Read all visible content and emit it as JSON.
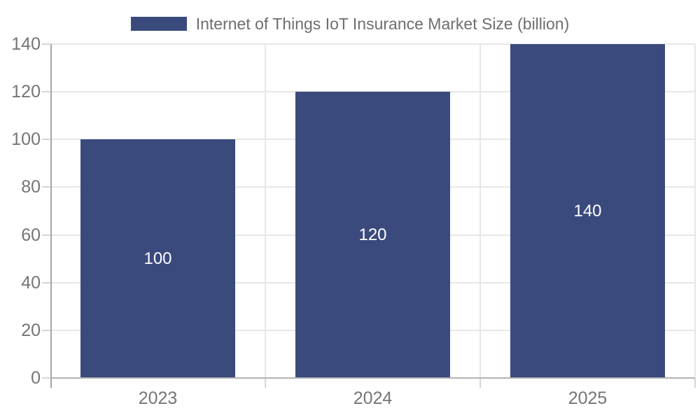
{
  "chart_data": {
    "type": "bar",
    "title": "Internet of Things IoT Insurance Market Size (billion)",
    "categories": [
      "2023",
      "2024",
      "2025"
    ],
    "series": [
      {
        "name": "Internet of Things IoT Insurance Market Size (billion)",
        "values": [
          100,
          120,
          140
        ]
      }
    ],
    "xlabel": "",
    "ylabel": "",
    "ylim": [
      0,
      140
    ],
    "yticks": [
      0,
      20,
      40,
      60,
      80,
      100,
      120,
      140
    ],
    "grid": true,
    "legend_position": "top-center",
    "colors": {
      "bar": "#3A4A7D",
      "bar_label": "#FFFFFF",
      "tick_label": "#757575",
      "legend_text": "#6E6E6E",
      "gridline": "#E7E7E7",
      "axis_y": "#A5A5A5",
      "axis_x": "#B3B3B3",
      "tick": "#D6D6D6",
      "background": "#FFFFFF"
    }
  }
}
